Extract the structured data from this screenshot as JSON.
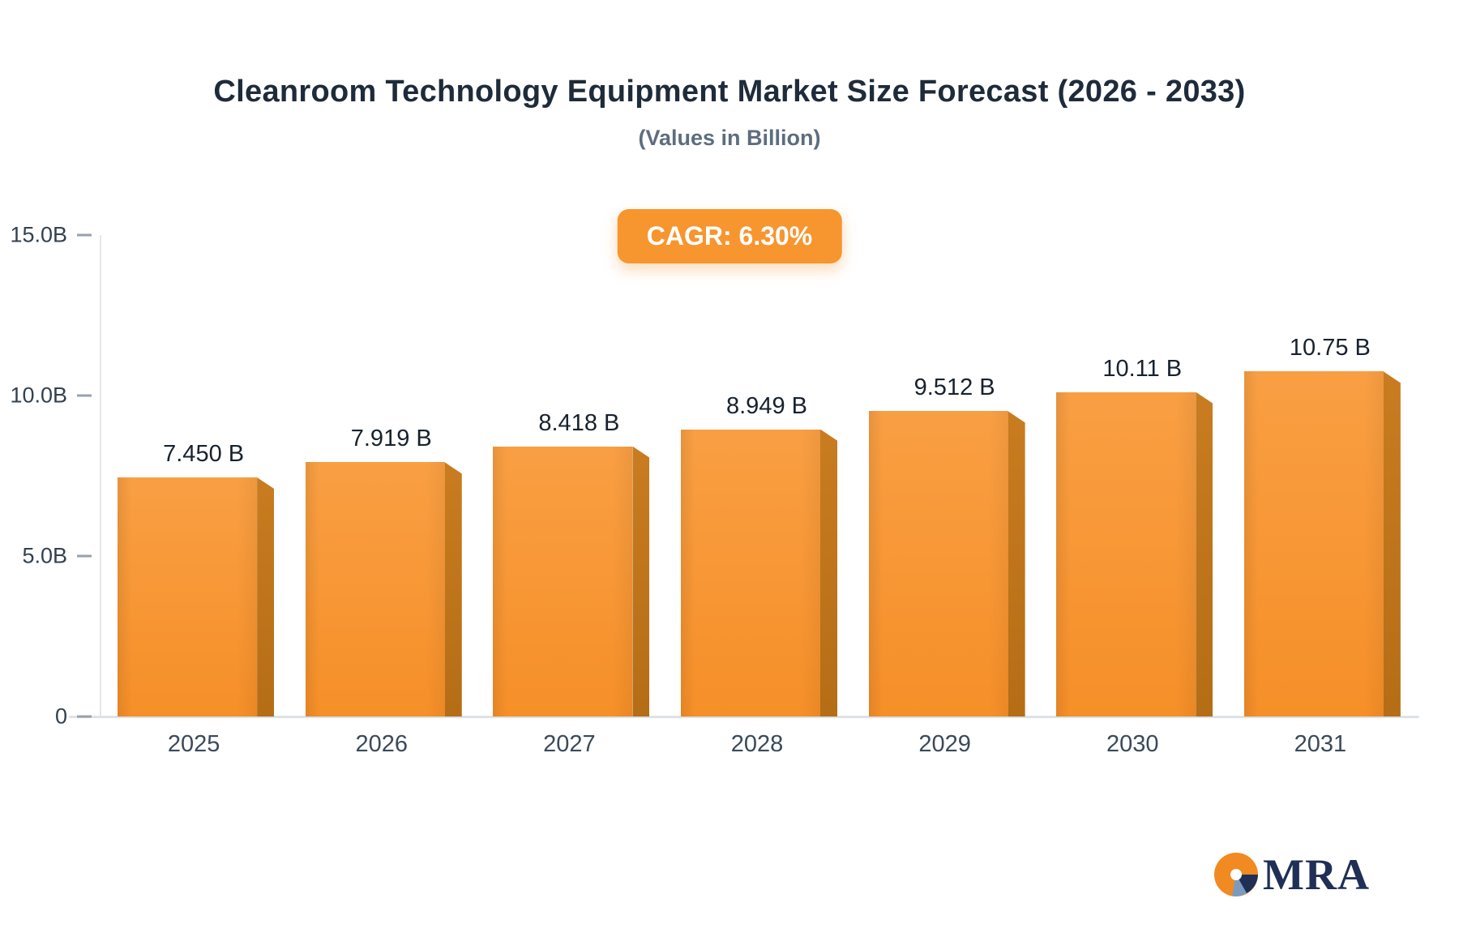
{
  "badge": {
    "label": "CAGR: 6.30%"
  },
  "logo": {
    "text": "MRA"
  },
  "chart_data": {
    "type": "bar",
    "title": "Cleanroom Technology Equipment Market Size Forecast (2026 - 2033)",
    "subtitle": "(Values in Billion)",
    "categories": [
      "2025",
      "2026",
      "2027",
      "2028",
      "2029",
      "2030",
      "2031"
    ],
    "values": [
      7.45,
      7.919,
      8.418,
      8.949,
      9.512,
      10.11,
      10.75
    ],
    "value_labels": [
      "7.450 B",
      "7.919 B",
      "8.418 B",
      "8.949 B",
      "9.512 B",
      "10.11 B",
      "10.75 B"
    ],
    "xlabel": "",
    "ylabel": "",
    "ylim": [
      0,
      15
    ],
    "yticks": [
      {
        "value": 0,
        "label": "0"
      },
      {
        "value": 5,
        "label": "5.0B"
      },
      {
        "value": 10,
        "label": "10.0B"
      },
      {
        "value": 15,
        "label": "15.0B"
      }
    ],
    "grid": false,
    "legend": null,
    "colors": {
      "bar_face": "#F7953A",
      "bar_side": "#C1761B",
      "badge": "#F7952F"
    }
  }
}
